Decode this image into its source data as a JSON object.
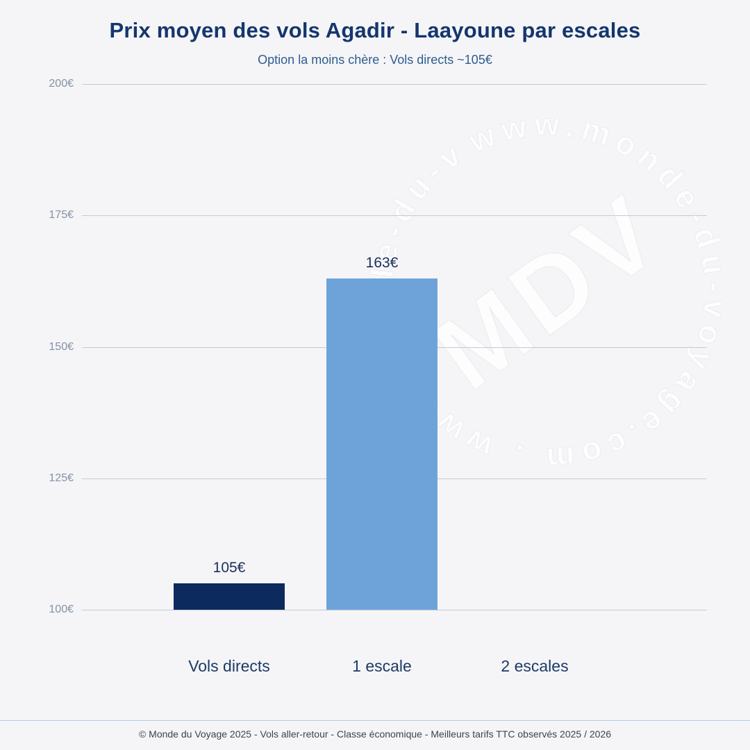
{
  "header": {
    "title": "Prix moyen des vols Agadir - Laayoune par escales",
    "subtitle": "Option la moins chère : Vols directs ~105€"
  },
  "chart_data": {
    "type": "bar",
    "title": "Prix moyen des vols Agadir - Laayoune par escales",
    "subtitle": "Option la moins chère : Vols directs ~105€",
    "categories": [
      "Vols directs",
      "1 escale",
      "2 escales"
    ],
    "values": [
      105,
      163,
      null
    ],
    "bar_labels": [
      "105€",
      "163€",
      ""
    ],
    "bar_colors": [
      "#0d2a5e",
      "#6ea3da",
      null
    ],
    "ylim": [
      100,
      200
    ],
    "yticks": [
      100,
      125,
      150,
      175,
      200
    ],
    "ytick_labels": [
      "100€",
      "125€",
      "150€",
      "175€",
      "200€"
    ],
    "ylabel": "",
    "xlabel": "",
    "grid": true,
    "legend": "none",
    "currency": "€"
  },
  "colors": {
    "background": "#f5f5f7",
    "title": "#14366e",
    "subtitle": "#2e5c8f",
    "gridline": "#c3cad6",
    "tick_label": "#8591a6",
    "bar_dark": "#0d2a5e",
    "bar_light": "#6ea3da",
    "footer_line": "#b5cbe2"
  },
  "watermark": {
    "ring_text": "www.monde-du-voyage.com",
    "center_text": "MDV"
  },
  "footer": {
    "text": "© Monde du Voyage 2025 - Vols aller-retour - Classe économique - Meilleurs tarifs TTC observés 2025 / 2026"
  }
}
